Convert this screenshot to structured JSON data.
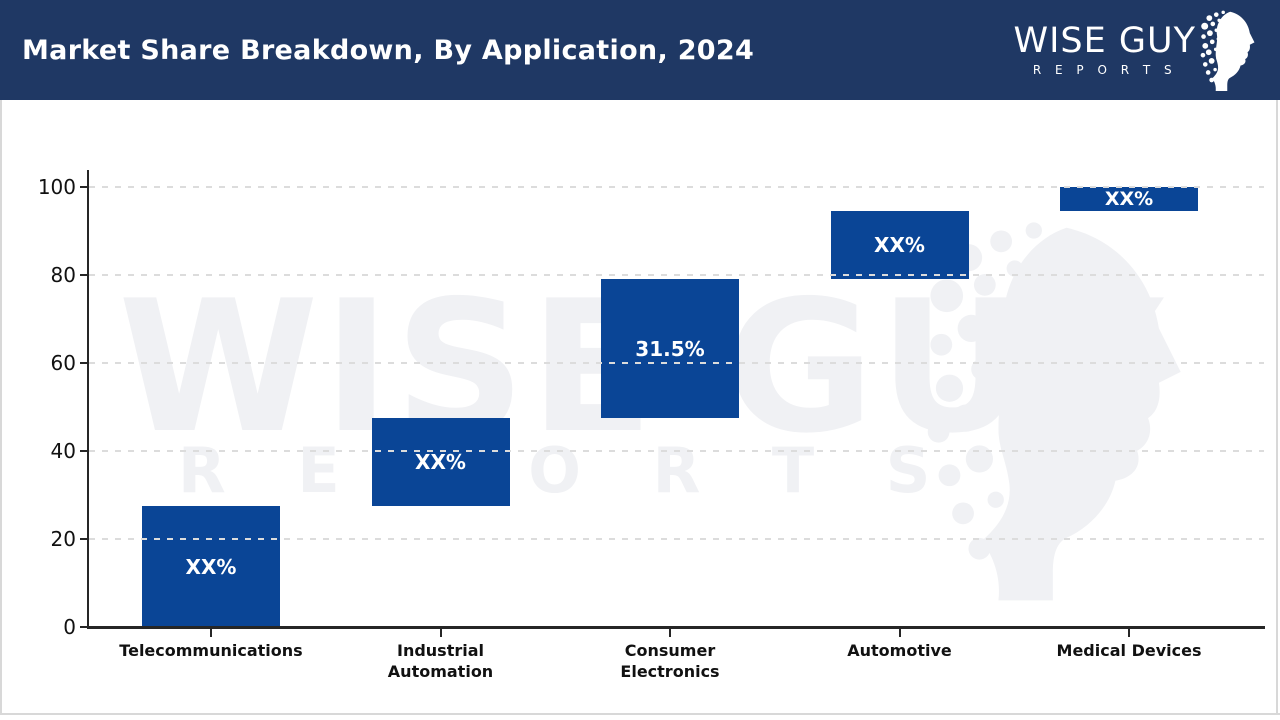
{
  "header": {
    "title": "Market Share Breakdown, By Application, 2024",
    "logo": {
      "name": "WISE GUY",
      "sub": "R E P O R T S"
    }
  },
  "watermark": {
    "line1": "WISE GUY",
    "line2": "R E P O R T S"
  },
  "colors": {
    "header_bg": "#1f3864",
    "bar": "#0a4596",
    "bar_label": "#ffffff",
    "grid": "#dcdcdc",
    "axis": "#262626",
    "watermark": "#f0f1f4",
    "frame": "#d8d8d8"
  },
  "chart_data": {
    "type": "bar",
    "subtype": "waterfall",
    "title": "Market Share Breakdown, By Application, 2024",
    "categories": [
      "Telecommunications",
      "Industrial Automation",
      "Consumer Electronics",
      "Automotive",
      "Medical Devices"
    ],
    "category_label_lines": [
      [
        "Telecommunications"
      ],
      [
        "Industrial",
        "Automation"
      ],
      [
        "Consumer",
        "Electronics"
      ],
      [
        "Automotive"
      ],
      [
        "Medical Devices"
      ]
    ],
    "segments": [
      {
        "category": "Telecommunications",
        "start": 0,
        "end": 27.5,
        "value_estimate": 27.5,
        "label": "XX%"
      },
      {
        "category": "Industrial Automation",
        "start": 27.5,
        "end": 47.5,
        "value_estimate": 20,
        "label": "XX%"
      },
      {
        "category": "Consumer Electronics",
        "start": 47.5,
        "end": 79,
        "value_estimate": 31.5,
        "label": "31.5%"
      },
      {
        "category": "Automotive",
        "start": 79,
        "end": 94.5,
        "value_estimate": 15.5,
        "label": "XX%"
      },
      {
        "category": "Medical Devices",
        "start": 94.5,
        "end": 100,
        "value_estimate": 5.5,
        "label": "XX%"
      }
    ],
    "y_ticks": [
      0,
      20,
      40,
      60,
      80,
      100
    ],
    "ylim": [
      0,
      104
    ],
    "xlabel": "",
    "ylabel": "",
    "grid": "horizontal-dashed",
    "legend": "none"
  }
}
